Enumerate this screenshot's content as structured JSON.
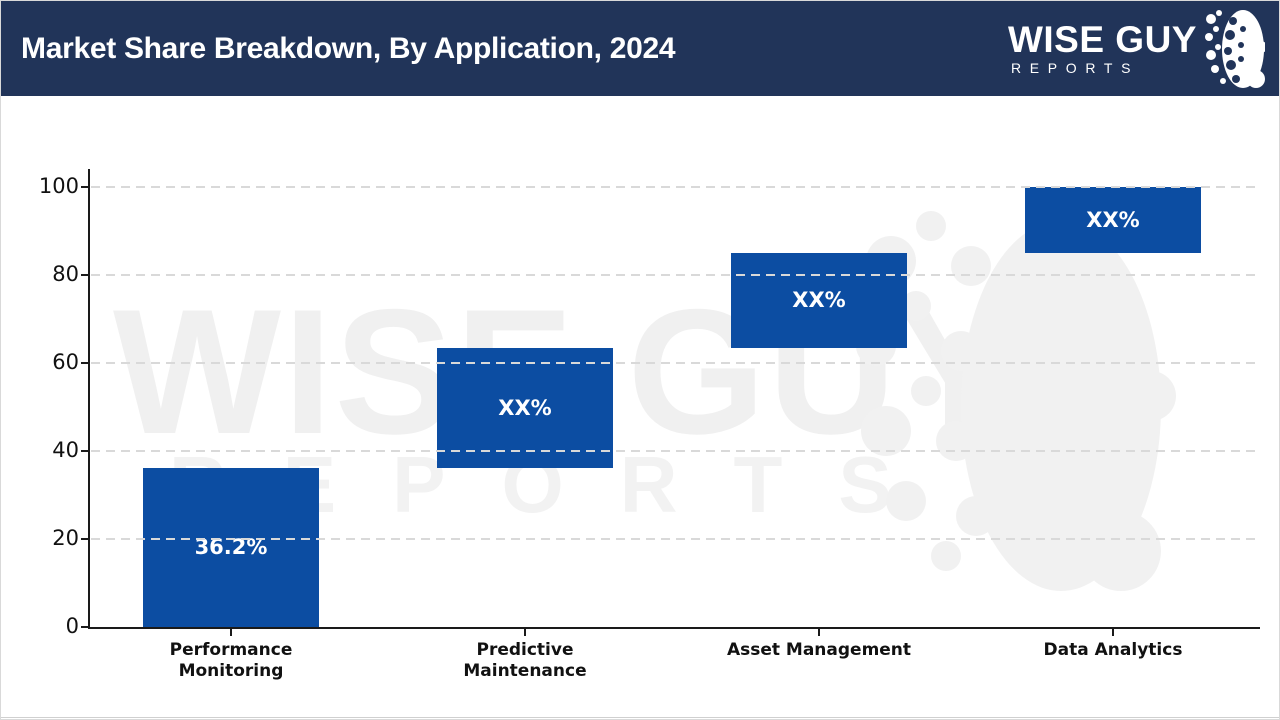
{
  "header": {
    "title": "Market Share Breakdown, By Application, 2024",
    "logo": {
      "line1": "WISE GUY",
      "line2": "REPORTS"
    }
  },
  "watermark": {
    "line1": "WISE GUY",
    "line2": "REPORTS"
  },
  "colors": {
    "header_bg": "#213459",
    "bar": "#0c4da2",
    "bar_label": "#ffffff",
    "gridline": "#d9d9d9",
    "axis": "#1a1a1a"
  },
  "chart_data": {
    "type": "bar",
    "variant": "floating-waterfall",
    "title": "Market Share Breakdown, By Application, 2024",
    "categories": [
      "Performance Monitoring",
      "Predictive Maintenance",
      "Asset Management",
      "Data Analytics"
    ],
    "category_lines": [
      [
        "Performance",
        "Monitoring"
      ],
      [
        "Predictive",
        "Maintenance"
      ],
      [
        "Asset Management"
      ],
      [
        "Data Analytics"
      ]
    ],
    "series": [
      {
        "name": "Market share (%)",
        "segments": [
          {
            "category": "Performance Monitoring",
            "start": 0,
            "end": 36.2,
            "value": 36.2,
            "label": "36.2%"
          },
          {
            "category": "Predictive Maintenance",
            "start": 36.2,
            "end": 63.5,
            "value": 27.3,
            "label": "XX%"
          },
          {
            "category": "Asset Management",
            "start": 63.5,
            "end": 85,
            "value": 21.5,
            "label": "XX%"
          },
          {
            "category": "Data Analytics",
            "start": 85,
            "end": 100,
            "value": 15,
            "label": "XX%"
          }
        ]
      }
    ],
    "ylim": [
      0,
      104
    ],
    "yticks": [
      0,
      20,
      40,
      60,
      80,
      100
    ],
    "xlabel": "",
    "ylabel": "",
    "grid": "horizontal-dashed",
    "legend": "none"
  }
}
